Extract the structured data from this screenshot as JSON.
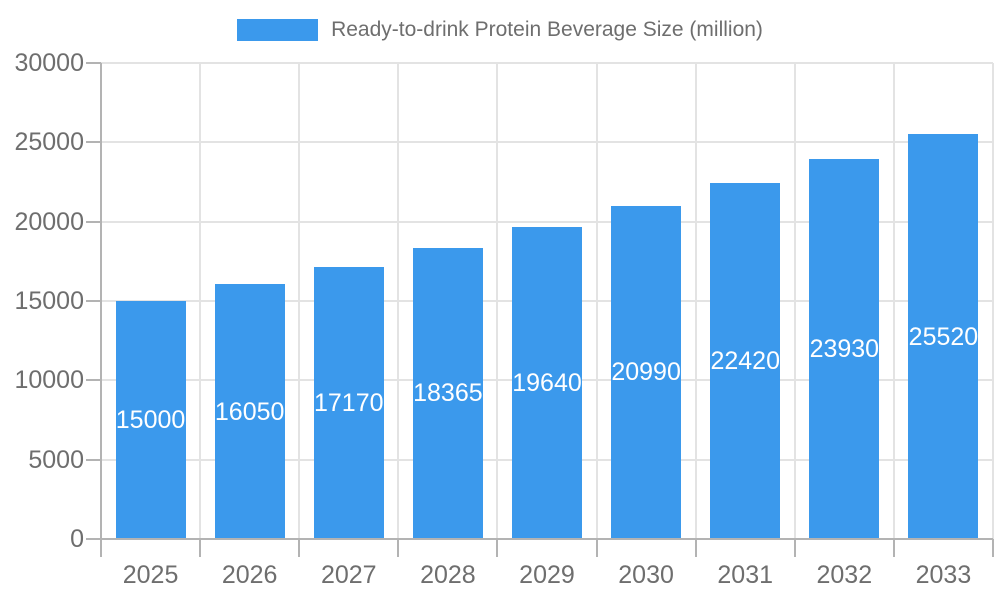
{
  "legend": {
    "label": "Ready-to-drink Protein Beverage Size (million)"
  },
  "colors": {
    "bar": "#3b99ec",
    "grid_line": "#e3e3e3",
    "axis_line": "#b3b3b3",
    "tick_label": "#6e6e6e",
    "value_label": "#ffffff",
    "legend_text": "#6e6e6e",
    "background": "#ffffff"
  },
  "chart_data": {
    "type": "bar",
    "title": "Ready-to-drink Protein Beverage Size (million)",
    "categories": [
      "2025",
      "2026",
      "2027",
      "2028",
      "2029",
      "2030",
      "2031",
      "2032",
      "2033"
    ],
    "values": [
      15000,
      16050,
      17170,
      18365,
      19640,
      20990,
      22420,
      23930,
      25520
    ],
    "series": [
      {
        "name": "Ready-to-drink Protein Beverage Size (million)",
        "values": [
          15000,
          16050,
          17170,
          18365,
          19640,
          20990,
          22420,
          23930,
          25520
        ]
      }
    ],
    "xlabel": "",
    "ylabel": "",
    "ylim": [
      0,
      30000
    ],
    "y_ticks": [
      0,
      5000,
      10000,
      15000,
      20000,
      25000,
      30000
    ],
    "grid": true,
    "legend_position": "top-center",
    "value_labels_position": "inside-center"
  }
}
